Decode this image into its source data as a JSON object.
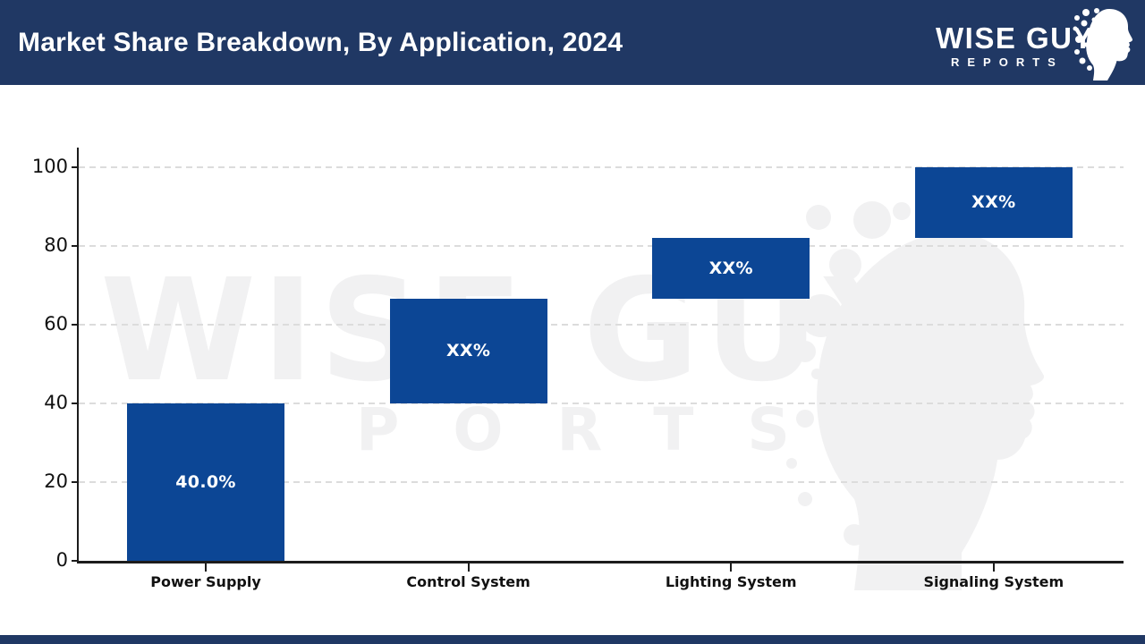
{
  "header": {
    "title": "Market Share Breakdown, By Application, 2024",
    "logo_line1": "WISE GUY",
    "logo_line2": "REPORTS"
  },
  "watermark": {
    "line1": "WISE GUY",
    "line2": "PORTS"
  },
  "colors": {
    "header_bg": "#203864",
    "footer_bg": "#203864",
    "bar": "#0c4695",
    "grid": "#dcdcdc",
    "axis": "#1c1c1c",
    "bar_label_text": "#ffffff",
    "watermark": "#f1f1f2"
  },
  "chart_data": {
    "type": "bar",
    "subtype": "waterfall",
    "title": "Market Share Breakdown, By Application, 2024",
    "categories": [
      "Power Supply",
      "Control System",
      "Lighting System",
      "Signaling System"
    ],
    "segments": [
      {
        "category": "Power Supply",
        "start": 0,
        "end": 40,
        "label": "40.0%"
      },
      {
        "category": "Control System",
        "start": 40,
        "end": 66.6,
        "label": "XX%"
      },
      {
        "category": "Lighting System",
        "start": 66.6,
        "end": 82.1,
        "label": "XX%"
      },
      {
        "category": "Signaling System",
        "start": 82.1,
        "end": 100,
        "label": "XX%"
      }
    ],
    "yticks": [
      0,
      20,
      40,
      60,
      80,
      100
    ],
    "ylim": [
      0,
      105
    ],
    "xlabel": "",
    "ylabel": "",
    "grid": "horizontal-dashed",
    "legend": "none"
  }
}
